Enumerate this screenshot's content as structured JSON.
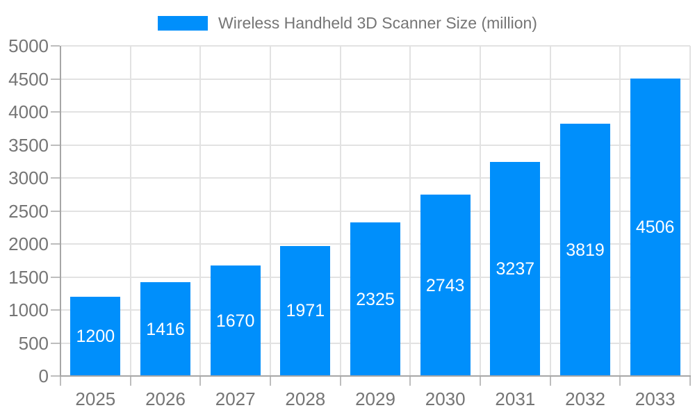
{
  "legend": {
    "label": "Wireless Handheld 3D Scanner Size (million)"
  },
  "chart_data": {
    "type": "bar",
    "title": "Wireless Handheld 3D Scanner Size (million)",
    "categories": [
      "2025",
      "2026",
      "2027",
      "2028",
      "2029",
      "2030",
      "2031",
      "2032",
      "2033"
    ],
    "values": [
      1200,
      1416,
      1670,
      1971,
      2325,
      2743,
      3237,
      3819,
      4506
    ],
    "data_labels": [
      1200,
      1416,
      1670,
      1971,
      2325,
      2743,
      3237,
      3819,
      4506
    ],
    "xlabel": "",
    "ylabel": "",
    "ylim": [
      0,
      5000
    ],
    "ytick_step": 500,
    "ytick_labels": [
      "0",
      "500",
      "1000",
      "1500",
      "2000",
      "2500",
      "3000",
      "3500",
      "4000",
      "4500",
      "5000"
    ],
    "grid": "both",
    "legend_position": "top-center",
    "colors": {
      "bar": "#008ffb",
      "bar_label": "#ffffff",
      "axis_text": "#757575",
      "grid_line": "#e2e2e2",
      "axis_line": "#a6a6a6",
      "tick_line": "#bdbdbd",
      "background": "#ffffff"
    }
  }
}
